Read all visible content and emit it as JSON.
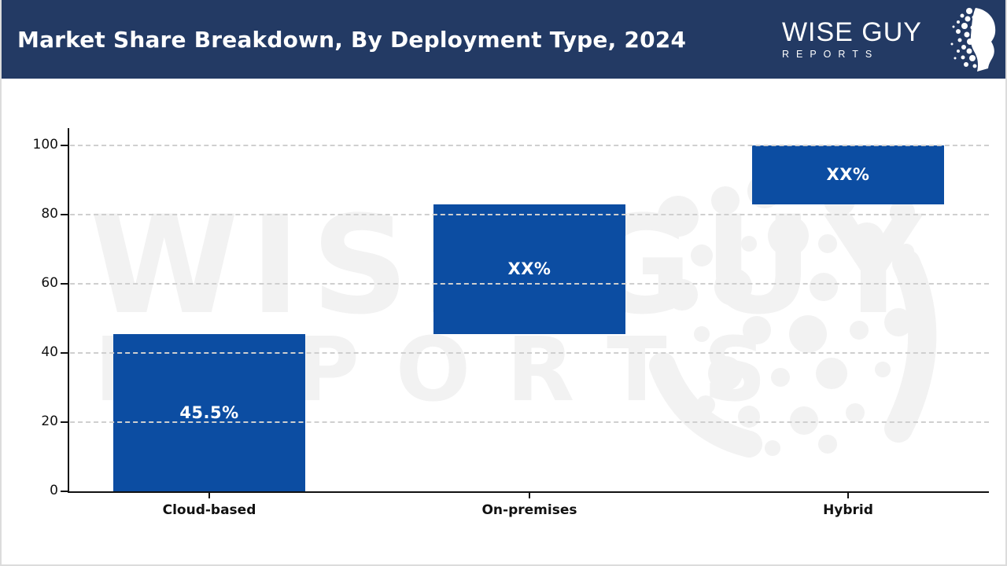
{
  "header": {
    "title": "Market Share Breakdown, By Deployment Type, 2024",
    "logo": {
      "line1": "WISE GUY",
      "line2": "REPORTS"
    }
  },
  "watermark": {
    "line1": "WISE GUY",
    "line2": "REPORTS"
  },
  "colors": {
    "header_bg": "#233A64",
    "bar": "#0C4DA2",
    "grid": "#CFCFCF",
    "axis": "#111111",
    "bar_label": "#FFFFFF",
    "watermark": "#F2F2F2",
    "border": "#DCDCDC"
  },
  "chart_data": {
    "type": "bar",
    "subtype": "floating-waterfall",
    "title": "Market Share Breakdown, By Deployment Type, 2024",
    "categories": [
      "Cloud-based",
      "On-premises",
      "Hybrid"
    ],
    "segments": [
      {
        "category": "Cloud-based",
        "start": 0,
        "end": 45.5,
        "label": "45.5%"
      },
      {
        "category": "On-premises",
        "start": 45.5,
        "end": 83,
        "label": "XX%"
      },
      {
        "category": "Hybrid",
        "start": 83,
        "end": 100,
        "label": "XX%"
      }
    ],
    "yticks": [
      0,
      20,
      40,
      60,
      80,
      100
    ],
    "ylim": [
      0,
      105
    ],
    "xlabel": "",
    "ylabel": "",
    "grid": "dashed-horizontal",
    "legend": "none",
    "bar_color": "#0C4DA2"
  }
}
